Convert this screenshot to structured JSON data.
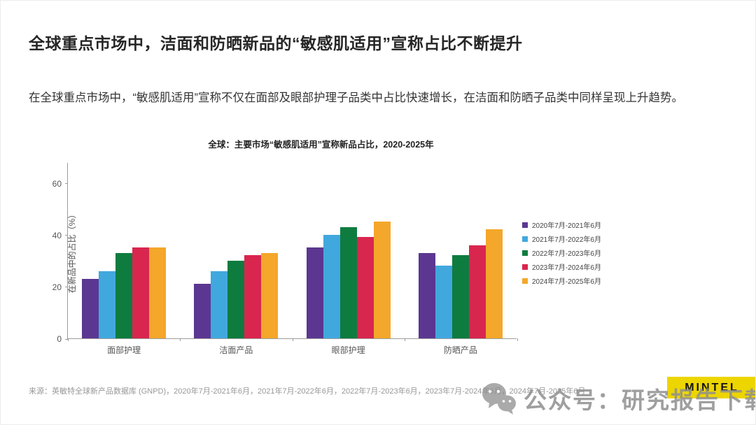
{
  "slide": {
    "title": "全球重点市场中，洁面和防晒新品的“敏感肌适用”宣称占比不断提升",
    "body": "在全球重点市场中，“敏感肌适用”宣称不仅在面部及眼部护理子品类中占比快速增长，在洁面和防晒子品类中同样呈现上升趋势。",
    "source": "来源：英敏特全球新产品数据库 (GNPD)，2020年7月-2021年6月，2021年7月-2022年6月，2022年7月-2023年6月，2023年7月-2024年6月，2024年7月-2025年6月",
    "logo_text": "MINTEL",
    "logo_bg": "#EDD500",
    "watermark_text": "公众号：研究报告下载",
    "watermark_icon": "wechat-icon"
  },
  "chart_data": {
    "type": "bar",
    "title": "全球：主要市场“敏感肌适用”宣称新品占比，2020-2025年",
    "ylabel": "在新品中的占比（%）",
    "ylim": [
      0,
      68
    ],
    "yticks": [
      0,
      20,
      40,
      60
    ],
    "grid": false,
    "legend_position": "right",
    "categories": [
      "面部护理",
      "洁面产品",
      "眼部护理",
      "防晒产品"
    ],
    "series": [
      {
        "name": "2020年7月-2021年6月",
        "color": "#5C3791",
        "values": [
          23,
          21,
          35,
          33
        ]
      },
      {
        "name": "2021年7月-2022年6月",
        "color": "#41A8DE",
        "values": [
          26,
          26,
          40,
          28
        ]
      },
      {
        "name": "2022年7月-2023年6月",
        "color": "#0E7C3F",
        "values": [
          33,
          30,
          43,
          32
        ]
      },
      {
        "name": "2023年7月-2024年6月",
        "color": "#D9264E",
        "values": [
          35,
          32,
          39,
          36
        ]
      },
      {
        "name": "2024年7月-2025年6月",
        "color": "#F4A72A",
        "values": [
          35,
          33,
          45,
          42
        ]
      }
    ]
  }
}
